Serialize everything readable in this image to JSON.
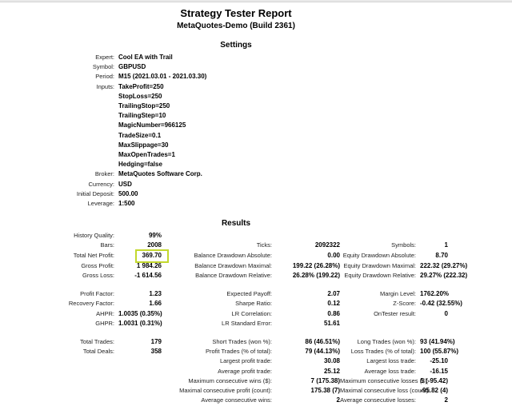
{
  "header": {
    "title": "Strategy Tester Report",
    "subtitle": "MetaQuotes-Demo (Build 2361)"
  },
  "sections": {
    "settings": "Settings",
    "results": "Results"
  },
  "settings": [
    {
      "label": "Expert:",
      "value": "Cool EA with Trail"
    },
    {
      "label": "Symbol:",
      "value": "GBPUSD"
    },
    {
      "label": "Period:",
      "value": "M15 (2021.03.01 - 2021.03.30)"
    },
    {
      "label": "Inputs:",
      "value": "TakeProfit=250"
    },
    {
      "label": "",
      "value": "StopLoss=250"
    },
    {
      "label": "",
      "value": "TrailingStop=250"
    },
    {
      "label": "",
      "value": "TrailingStep=10"
    },
    {
      "label": "",
      "value": "MagicNumber=966125"
    },
    {
      "label": "",
      "value": "TradeSize=0.1"
    },
    {
      "label": "",
      "value": "MaxSlippage=30"
    },
    {
      "label": "",
      "value": "MaxOpenTrades=1"
    },
    {
      "label": "",
      "value": "Hedging=false"
    },
    {
      "label": "Broker:",
      "value": "MetaQuotes Software Corp."
    },
    {
      "label": "Currency:",
      "value": "USD"
    },
    {
      "label": "Initial Deposit:",
      "value": "500.00"
    },
    {
      "label": "Leverage:",
      "value": "1:500"
    }
  ],
  "results": {
    "groups": [
      {
        "rows": [
          {
            "cells": [
              "History Quality:",
              "99%",
              "",
              "",
              "",
              ""
            ]
          },
          {
            "cells": [
              "Bars:",
              "2008",
              "Ticks:",
              "2092322",
              "Symbols:",
              "1"
            ]
          },
          {
            "cells": [
              "Total Net Profit:",
              "369.70",
              "Balance Drawdown Absolute:",
              "0.00",
              "Equity Drawdown Absolute:",
              "8.70"
            ],
            "highlight": 1
          },
          {
            "cells": [
              "Gross Profit:",
              "1 984.26",
              "Balance Drawdown Maximal:",
              "199.22 (26.28%)",
              "Equity Drawdown Maximal:",
              "222.32 (29.27%)"
            ]
          },
          {
            "cells": [
              "Gross Loss:",
              "-1 614.56",
              "Balance Drawdown Relative:",
              "26.28% (199.22)",
              "Equity Drawdown Relative:",
              "29.27% (222.32)"
            ]
          }
        ]
      },
      {
        "rows": [
          {
            "cells": [
              "Profit Factor:",
              "1.23",
              "Expected Payoff:",
              "2.07",
              "Margin Level:",
              "1762.20%"
            ]
          },
          {
            "cells": [
              "Recovery Factor:",
              "1.66",
              "Sharpe Ratio:",
              "0.12",
              "Z-Score:",
              "-0.42 (32.55%)"
            ]
          },
          {
            "cells": [
              "AHPR:",
              "1.0035 (0.35%)",
              "LR Correlation:",
              "0.86",
              "OnTester result:",
              "0"
            ]
          },
          {
            "cells": [
              "GHPR:",
              "1.0031 (0.31%)",
              "LR Standard Error:",
              "51.61",
              "",
              ""
            ]
          }
        ]
      },
      {
        "rows": [
          {
            "cells": [
              "Total Trades:",
              "179",
              "Short Trades (won %):",
              "86 (46.51%)",
              "Long Trades (won %):",
              "93 (41.94%)"
            ]
          },
          {
            "cells": [
              "Total Deals:",
              "358",
              "Profit Trades (% of total):",
              "79 (44.13%)",
              "Loss Trades (% of total):",
              "100 (55.87%)"
            ]
          },
          {
            "cells": [
              "",
              "",
              "Largest profit trade:",
              "30.08",
              "Largest loss trade:",
              "-25.10"
            ]
          },
          {
            "cells": [
              "",
              "",
              "Average profit trade:",
              "25.12",
              "Average loss trade:",
              "-16.15"
            ]
          },
          {
            "cells": [
              "",
              "",
              "Maximum consecutive wins ($):",
              "7 (175.38)",
              "Maximum consecutive losses ($):",
              "5 (-95.42)"
            ]
          },
          {
            "cells": [
              "",
              "",
              "Maximal consecutive profit (count):",
              "175.38 (7)",
              "Maximal consecutive loss (count):",
              "-95.82 (4)"
            ]
          },
          {
            "cells": [
              "",
              "",
              "Average consecutive wins:",
              "2",
              "Average consecutive losses:",
              "2"
            ]
          }
        ]
      }
    ]
  },
  "colors": {
    "highlight_border": "#c3d82d"
  }
}
